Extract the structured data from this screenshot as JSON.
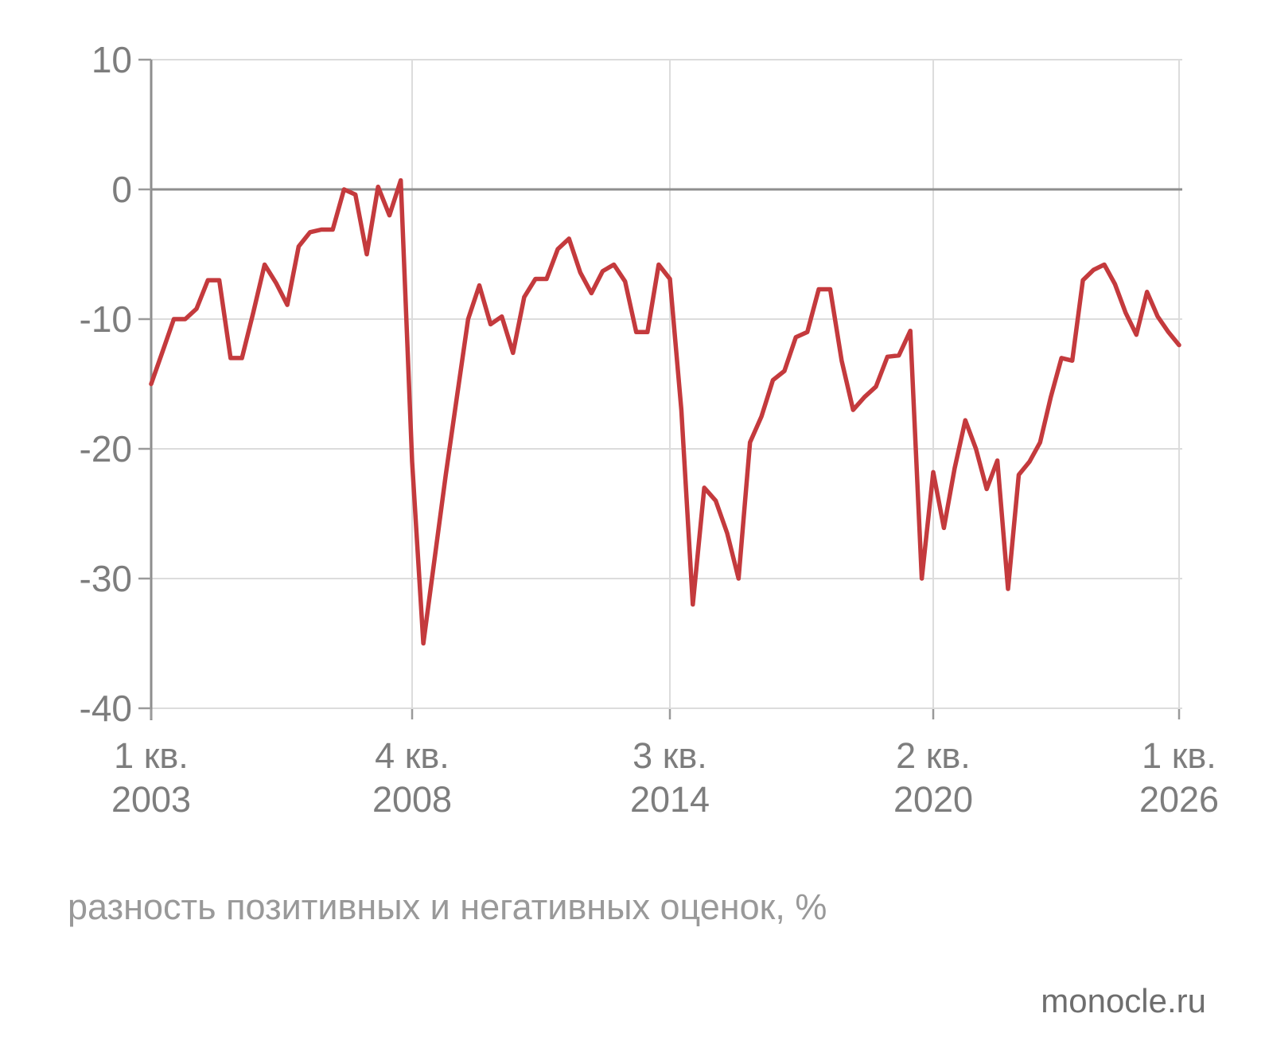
{
  "caption": "разность позитивных и негативных оценок, %",
  "brand": "monocle.ru",
  "chart_data": {
    "type": "line",
    "title": "разность позитивных и негативных оценок, %",
    "frequency": "quarterly",
    "x_start": "1 кв. 2003",
    "x_end": "1 кв. 2026",
    "legend_position": "none",
    "grid": true,
    "x_axis": {
      "tick_quarter_indices": [
        0,
        23,
        46,
        69,
        92
      ],
      "tick_labels": [
        {
          "quarter": "1 кв.",
          "year": "2003"
        },
        {
          "quarter": "4 кв.",
          "year": "2008"
        },
        {
          "quarter": "3 кв.",
          "year": "2014"
        },
        {
          "quarter": "2 кв.",
          "year": "2020"
        },
        {
          "quarter": "1 кв.",
          "year": "2026"
        }
      ]
    },
    "y_axis": {
      "tick_labels": [
        "10",
        "0",
        "-10",
        "-20",
        "-30",
        "-40"
      ],
      "tick_values": [
        10,
        0,
        -10,
        -20,
        -30,
        -40
      ],
      "range": [
        -40,
        10
      ]
    },
    "values": [
      -15,
      -12.5,
      -10,
      -10,
      -9.2,
      -7,
      -7,
      -13,
      -13,
      -9.5,
      -5.8,
      -7.2,
      -8.9,
      -4.4,
      -3.3,
      -3.1,
      -3.1,
      0,
      -0.4,
      -5,
      0.2,
      -2,
      0.7,
      -21,
      -35,
      -28.5,
      -22,
      -16,
      -10,
      -7.4,
      -10.4,
      -9.8,
      -12.6,
      -8.3,
      -6.9,
      -6.9,
      -4.6,
      -3.8,
      -6.4,
      -8,
      -6.3,
      -5.8,
      -7.1,
      -11,
      -11,
      -5.8,
      -6.9,
      -17,
      -32,
      -23,
      -24,
      -26.5,
      -30,
      -19.5,
      -17.5,
      -14.7,
      -14,
      -11.4,
      -11,
      -7.7,
      -7.7,
      -13.2,
      -17,
      -16,
      -15.2,
      -12.9,
      -12.8,
      -10.9,
      -30,
      -21.8,
      -26.1,
      -21.5,
      -17.8,
      -20,
      -23.1,
      -20.9,
      -30.8,
      -22,
      -21,
      -19.5,
      -16,
      -13,
      -13.2,
      -7,
      -6.2,
      -5.8,
      -7.3,
      -9.5,
      -11.2,
      -7.9,
      -9.8,
      -11,
      -12
    ],
    "colors": {
      "line": "#c43a3d",
      "grid_light": "#dcdcdc",
      "axis_dark": "#8e8e8e",
      "tick": "#9a9a9a",
      "tick_label": "#7d7d7d",
      "caption": "#999999",
      "brand": "#6e6e6e"
    }
  }
}
